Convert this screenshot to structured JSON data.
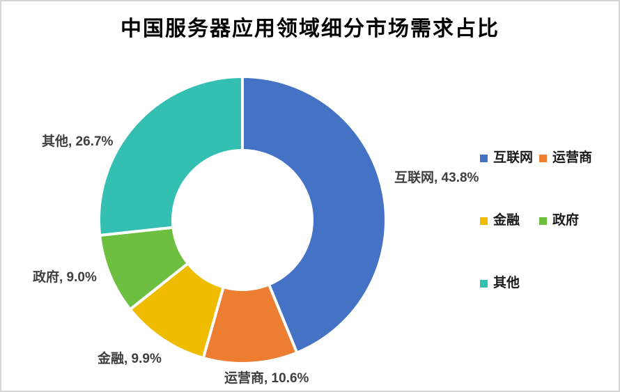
{
  "title": "中国服务器应用领域细分市场需求占比",
  "chart_data": {
    "type": "pie",
    "subtype": "donut",
    "title": "中国服务器应用领域细分市场需求占比",
    "categories": [
      "互联网",
      "运营商",
      "金融",
      "政府",
      "其他"
    ],
    "values": [
      43.8,
      10.6,
      9.9,
      9.0,
      26.7
    ],
    "unit": "%",
    "colors": [
      "#4472C4",
      "#ED7D31",
      "#F0BC00",
      "#6CBF3F",
      "#33BFB2"
    ],
    "slice_labels": [
      "互联网, 43.8%",
      "运营商, 10.6%",
      "金融, 9.9%",
      "政府, 9.0%",
      "其他, 26.7%"
    ],
    "legend_entries": [
      "互联网",
      "运营商",
      "金融",
      "政府",
      "其他"
    ],
    "legend_position": "right",
    "start_angle_deg": 0,
    "direction": "clockwise",
    "hole_ratio": 0.485,
    "slice_border_color": "#ffffff",
    "label_color": "#3f3f3f",
    "title_color": "#000000",
    "background_color": "#ffffff"
  }
}
